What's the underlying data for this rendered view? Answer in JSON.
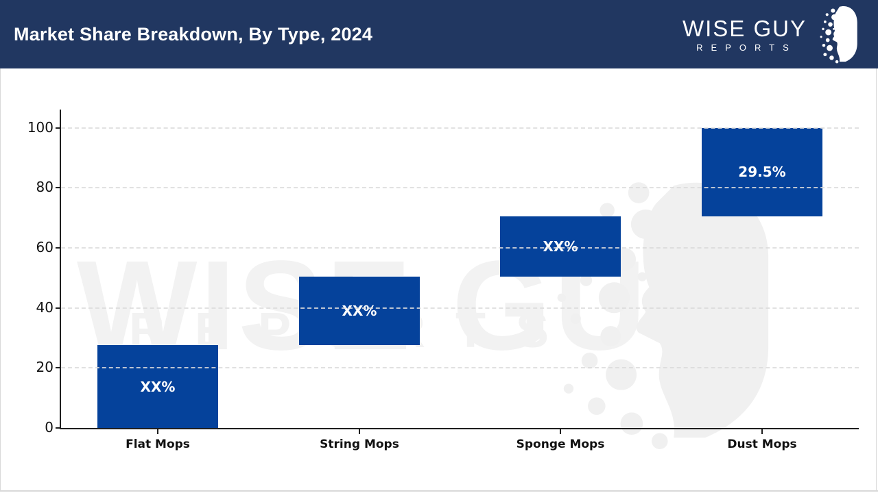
{
  "header": {
    "title": "Market Share Breakdown, By Type, 2024",
    "logo": {
      "primary": "WISE GUY",
      "secondary": "REPORTS"
    }
  },
  "watermark": {
    "primary": "WISE GUY",
    "secondary": "REPORTS"
  },
  "colors": {
    "header_bg": "#213761",
    "header_text": "#ffffff",
    "bar": "#05429B",
    "bar_label": "#ffffff",
    "axis": "#1f1f1f",
    "tick_label": "#111111",
    "grid": "#dcdcdc",
    "watermark": "#f2f2f2",
    "frame": "#d9d9d9"
  },
  "chart_data": {
    "type": "bar",
    "variant": "floating-waterfall",
    "title": "Market Share Breakdown, By Type, 2024",
    "categories": [
      "Flat Mops",
      "String Mops",
      "Sponge Mops",
      "Dust Mops"
    ],
    "segments": [
      {
        "category": "Flat Mops",
        "start": 0,
        "end": 27.5,
        "label": "XX%"
      },
      {
        "category": "String Mops",
        "start": 27.5,
        "end": 50.5,
        "label": "XX%"
      },
      {
        "category": "Sponge Mops",
        "start": 50.5,
        "end": 70.5,
        "label": "XX%"
      },
      {
        "category": "Dust Mops",
        "start": 70.5,
        "end": 100,
        "label": "29.5%"
      }
    ],
    "values": [
      27.5,
      23,
      20,
      29.5
    ],
    "unit": "%",
    "xlabel": "",
    "ylabel": "",
    "yticks": [
      0,
      20,
      40,
      60,
      80,
      100
    ],
    "ylim": [
      0,
      106
    ],
    "grid": {
      "horizontal": true,
      "style": "dashed"
    },
    "legend": "none"
  }
}
